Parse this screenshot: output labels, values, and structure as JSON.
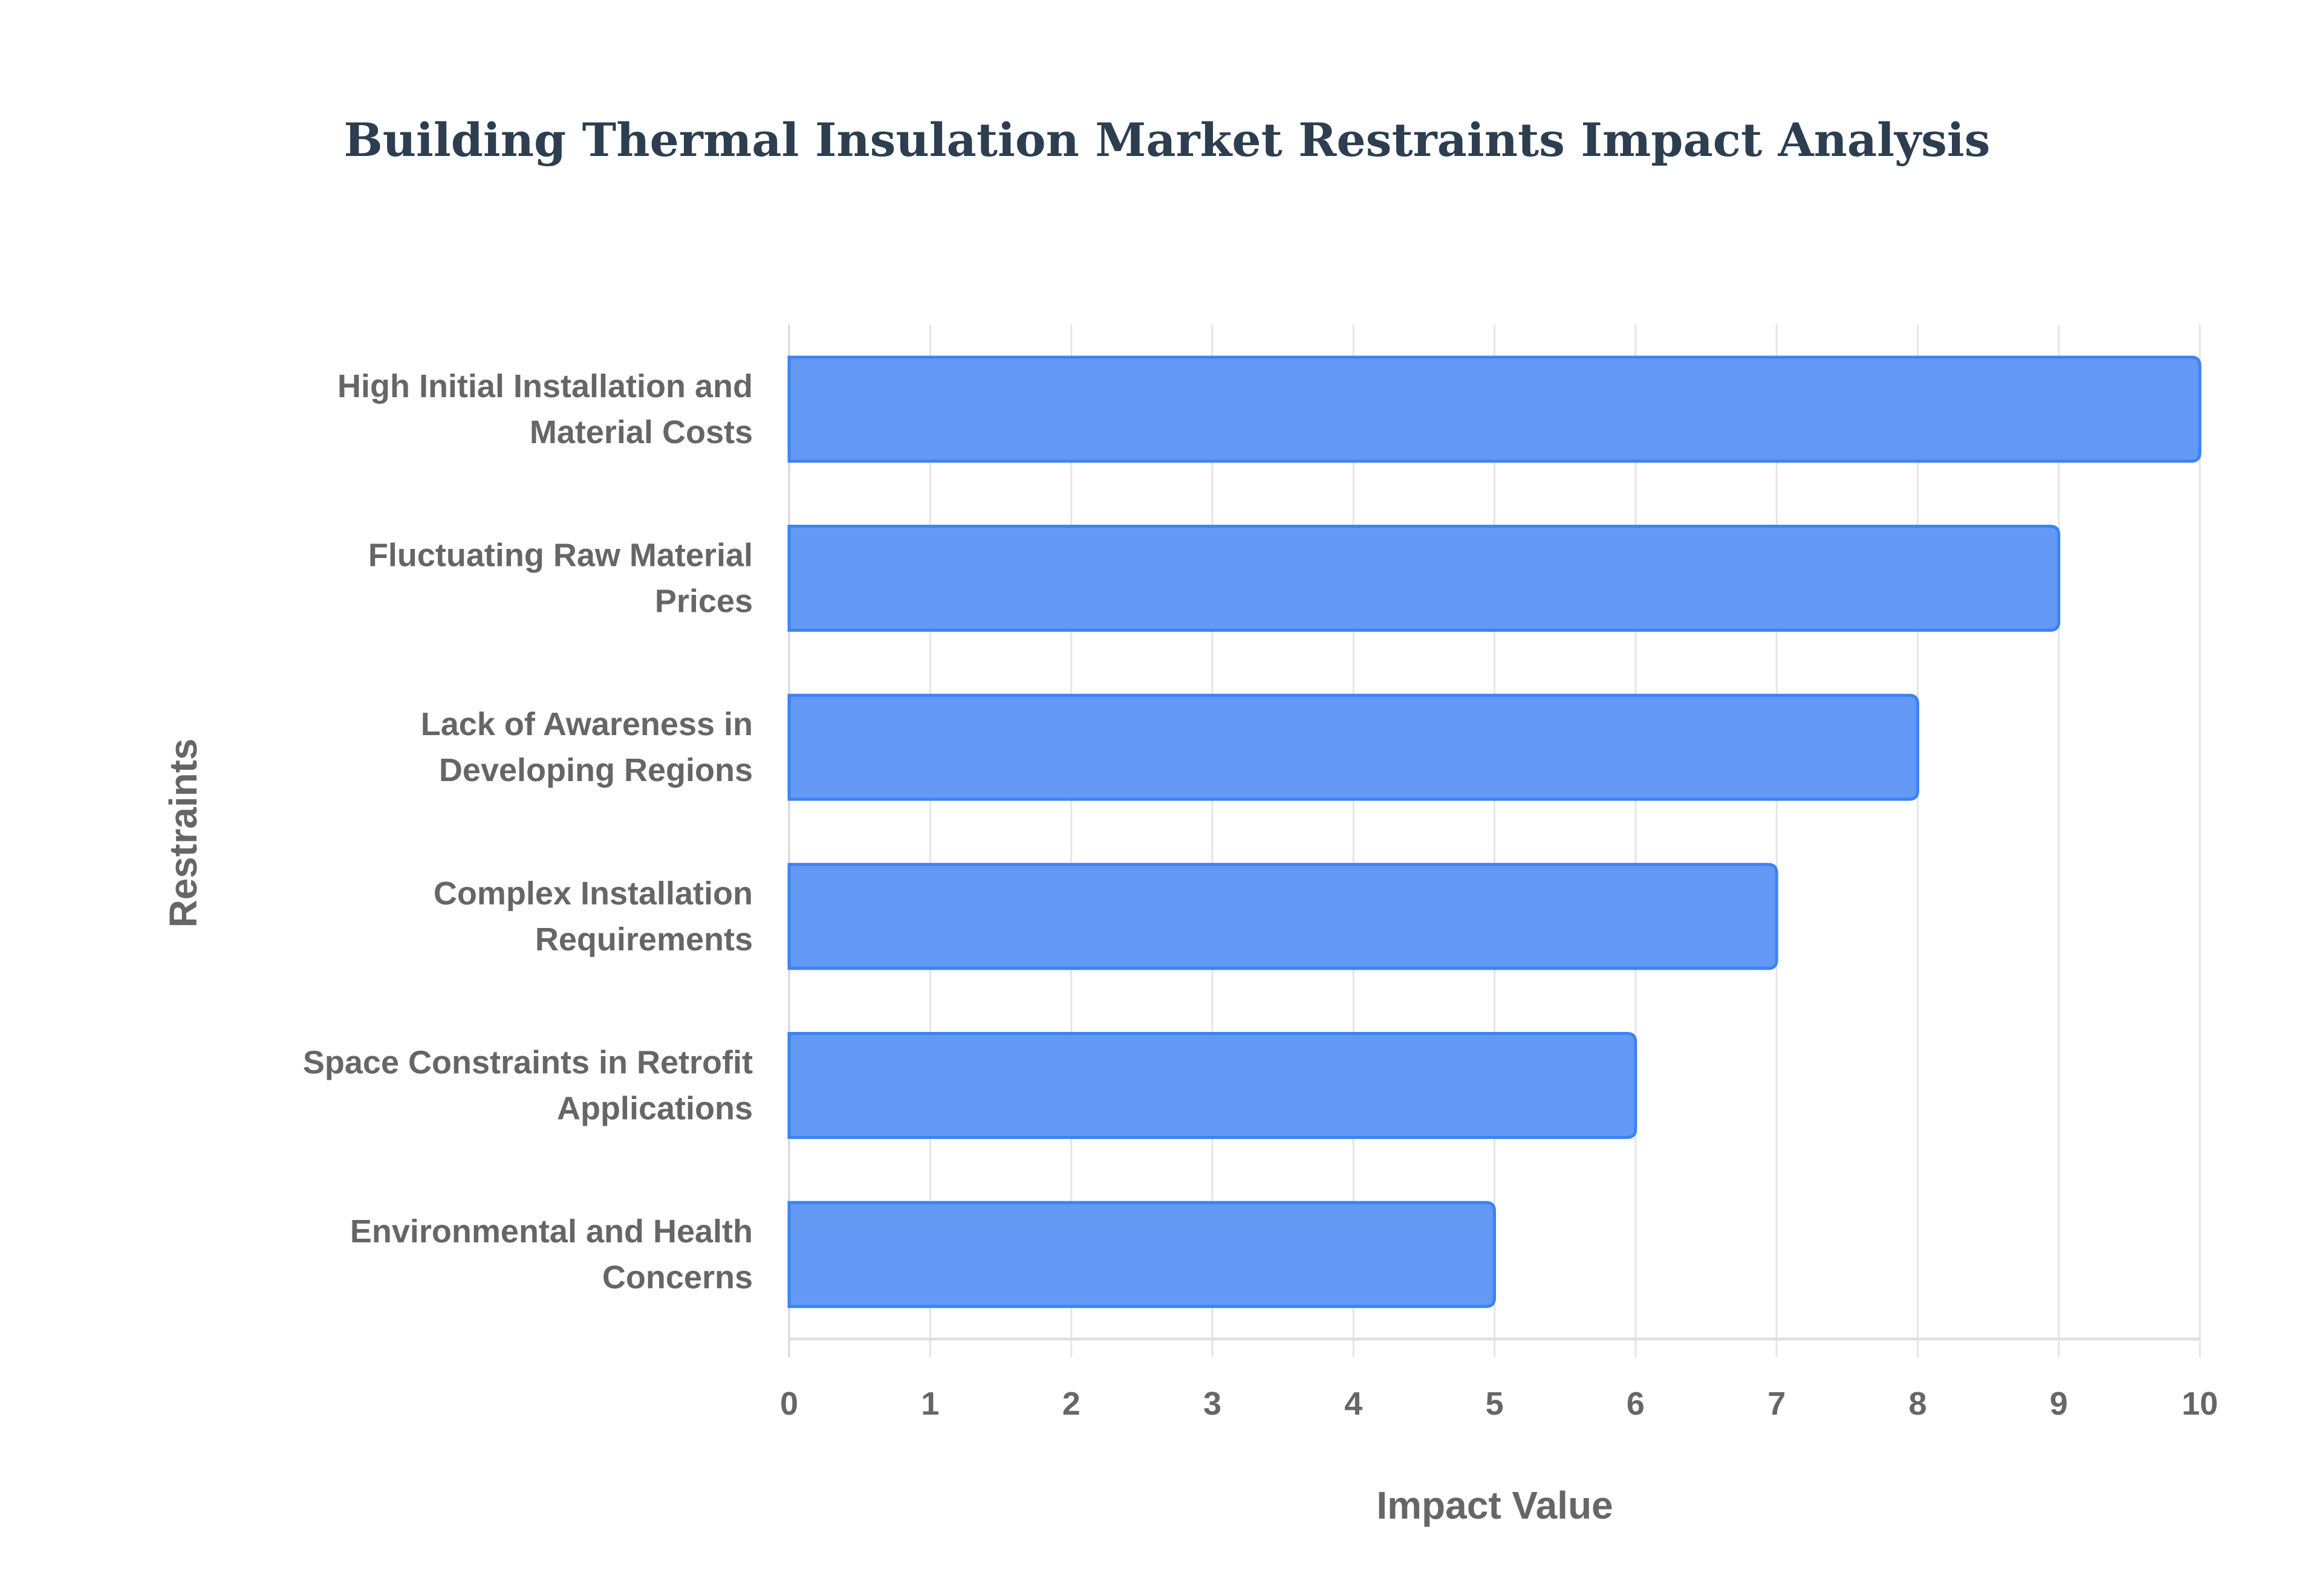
{
  "chart_data": {
    "type": "bar",
    "orientation": "horizontal",
    "title": "Building Thermal Insulation Market Restraints Impact Analysis",
    "xlabel": "Impact Value",
    "ylabel": "Restraints",
    "xlim": [
      0,
      10
    ],
    "xticks": [
      "0",
      "1",
      "2",
      "3",
      "4",
      "5",
      "6",
      "7",
      "8",
      "9",
      "10"
    ],
    "grid": true,
    "legend": "none",
    "categories": [
      [
        "High Initial Installation and",
        "Material Costs"
      ],
      [
        "Fluctuating Raw Material",
        "Prices"
      ],
      [
        "Lack of Awareness in",
        "Developing Regions"
      ],
      [
        "Complex Installation",
        "Requirements"
      ],
      [
        "Space Constraints in Retrofit",
        "Applications"
      ],
      [
        "Environmental and Health",
        "Concerns"
      ]
    ],
    "values": [
      10,
      9,
      8,
      7,
      6,
      5
    ],
    "colors": {
      "bar_fill": "#6399f5",
      "bar_border": "#3b82f6",
      "grid": "#e5e5e5",
      "text": "#666666",
      "title": "#2c3e50"
    }
  }
}
